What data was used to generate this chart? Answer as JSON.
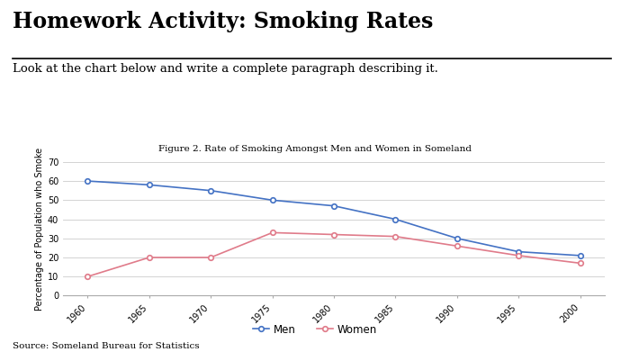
{
  "title": "Homework Activity: Smoking Rates",
  "subtitle": "Look at the chart below and write a complete paragraph describing it.",
  "fig_title": "Figure 2. Rate of Smoking Amongst Men and Women in Someland",
  "source": "Source: Someland Bureau for Statistics",
  "years": [
    1960,
    1965,
    1970,
    1975,
    1980,
    1985,
    1990,
    1995,
    2000
  ],
  "men": [
    60,
    58,
    55,
    50,
    47,
    40,
    30,
    23,
    21
  ],
  "women": [
    10,
    20,
    20,
    33,
    32,
    31,
    26,
    21,
    17
  ],
  "men_color": "#4472c4",
  "women_color": "#e07b8a",
  "ylim": [
    0,
    70
  ],
  "yticks": [
    0,
    10,
    20,
    30,
    40,
    50,
    60,
    70
  ],
  "ylabel": "Percentage of Population who Smoke",
  "bg_color": "#ffffff",
  "grid_color": "#cccccc"
}
